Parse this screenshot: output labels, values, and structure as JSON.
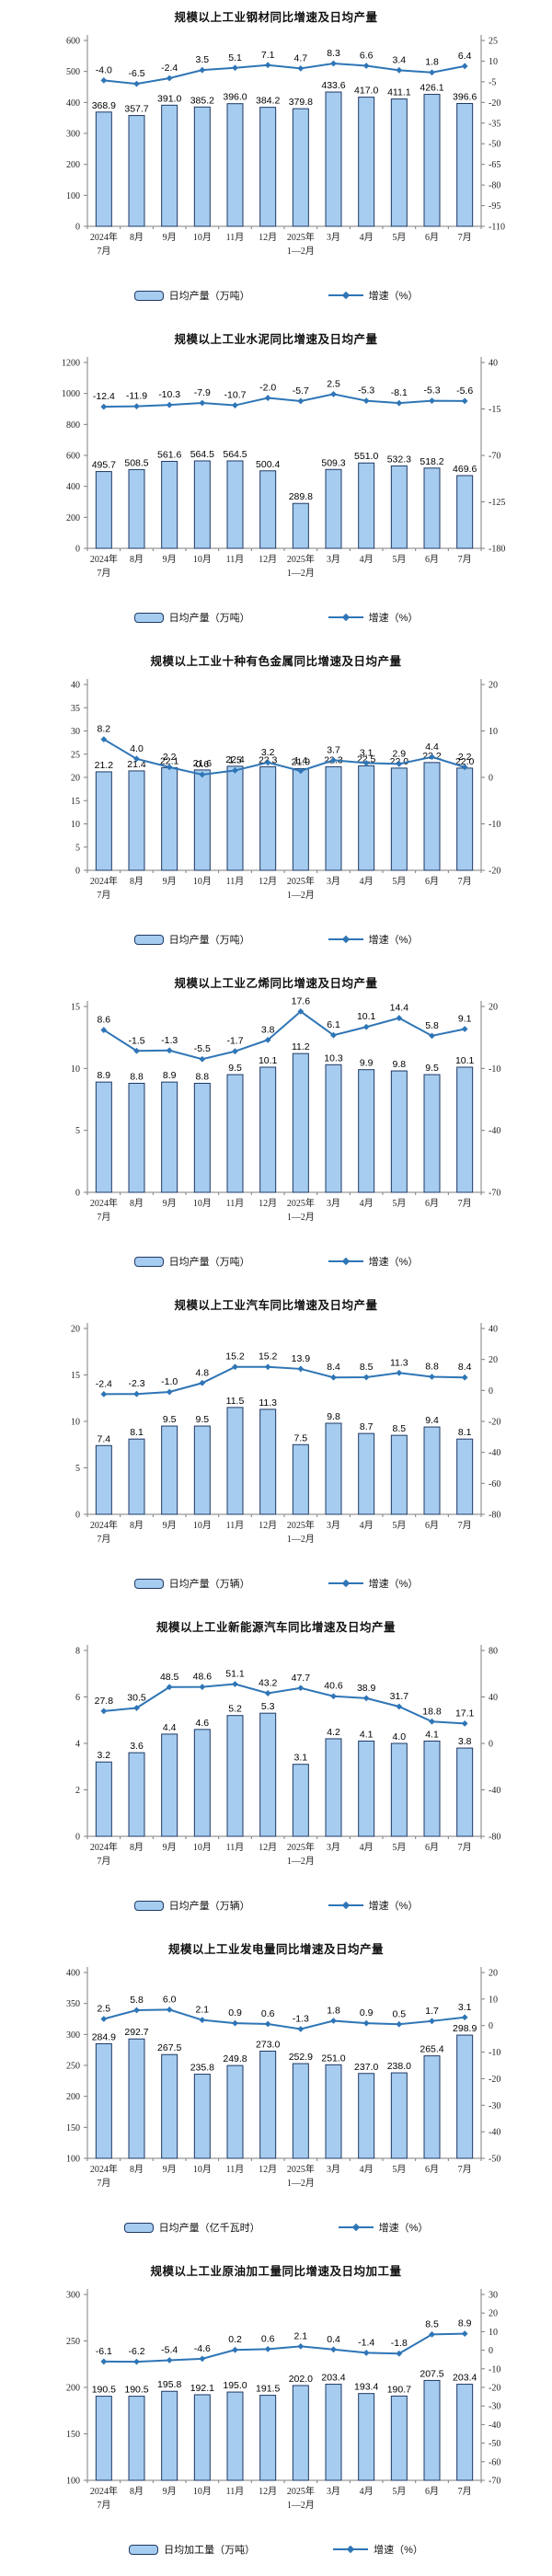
{
  "colors": {
    "background": "#ffffff",
    "bar_fill": "#A6CDF0",
    "bar_border": "#1F3864",
    "line": "#2E75B6",
    "data_label": "#000000",
    "axis_text": "#222222",
    "axis_line": "#7f7f7f"
  },
  "category_display": [
    [
      "2024年",
      "7月"
    ],
    [
      "8月"
    ],
    [
      "9月"
    ],
    [
      "10月"
    ],
    [
      "11月"
    ],
    [
      "12月"
    ],
    [
      "2025年",
      "1—2月"
    ],
    [
      "3月"
    ],
    [
      "4月"
    ],
    [
      "5月"
    ],
    [
      "6月"
    ],
    [
      "7月"
    ]
  ],
  "chart_data": [
    {
      "type": "bar+line",
      "title": "规模以上工业钢材同比增速及日均产量",
      "categories": [
        "2024年7月",
        "8月",
        "9月",
        "10月",
        "11月",
        "12月",
        "2025年1—2月",
        "3月",
        "4月",
        "5月",
        "6月",
        "7月"
      ],
      "series": [
        {
          "name": "日均产量（万吨）",
          "type": "bar",
          "axis": "left",
          "values": [
            368.9,
            357.7,
            391.0,
            385.2,
            396.0,
            384.2,
            379.8,
            433.6,
            417.0,
            411.1,
            426.1,
            396.6
          ]
        },
        {
          "name": "增速（%）",
          "type": "line",
          "axis": "right",
          "values": [
            -4.0,
            -6.5,
            -2.4,
            3.5,
            5.1,
            7.1,
            4.7,
            8.3,
            6.6,
            3.4,
            1.8,
            6.4
          ]
        }
      ],
      "left_axis": {
        "min": 0,
        "max": 600,
        "ticks": [
          600,
          500,
          400,
          300,
          200,
          100,
          0
        ]
      },
      "right_axis": {
        "min": -110,
        "max": 25,
        "ticks": [
          25,
          10,
          -5,
          -20,
          -35,
          -50,
          -65,
          -80,
          -95,
          -110
        ]
      },
      "grid": false,
      "legend_position": "bottom"
    },
    {
      "type": "bar+line",
      "title": "规模以上工业水泥同比增速及日均产量",
      "categories": [
        "2024年7月",
        "8月",
        "9月",
        "10月",
        "11月",
        "12月",
        "2025年1—2月",
        "3月",
        "4月",
        "5月",
        "6月",
        "7月"
      ],
      "series": [
        {
          "name": "日均产量（万吨）",
          "type": "bar",
          "axis": "left",
          "values": [
            495.7,
            508.5,
            561.6,
            564.5,
            564.5,
            500.4,
            289.8,
            509.3,
            551.0,
            532.3,
            518.2,
            469.6
          ]
        },
        {
          "name": "增速（%）",
          "type": "line",
          "axis": "right",
          "values": [
            -12.4,
            -11.9,
            -10.3,
            -7.9,
            -10.7,
            -2.0,
            -5.7,
            2.5,
            -5.3,
            -8.1,
            -5.3,
            -5.6
          ]
        }
      ],
      "left_axis": {
        "min": 0,
        "max": 1200,
        "ticks": [
          1200,
          1000,
          800,
          600,
          400,
          200,
          0
        ]
      },
      "right_axis": {
        "min": -180,
        "max": 40,
        "ticks": [
          40,
          -15,
          -70,
          -125,
          -180
        ]
      },
      "grid": false,
      "legend_position": "bottom"
    },
    {
      "type": "bar+line",
      "title": "规模以上工业十种有色金属同比增速及日均产量",
      "categories": [
        "2024年7月",
        "8月",
        "9月",
        "10月",
        "11月",
        "12月",
        "2025年1—2月",
        "3月",
        "4月",
        "5月",
        "6月",
        "7月"
      ],
      "series": [
        {
          "name": "日均产量（万吨）",
          "type": "bar",
          "axis": "left",
          "values": [
            21.2,
            21.4,
            22.1,
            21.6,
            22.4,
            22.3,
            21.9,
            22.3,
            22.5,
            22.0,
            23.2,
            22.0
          ]
        },
        {
          "name": "增速（%）",
          "type": "line",
          "axis": "right",
          "values": [
            8.2,
            4.0,
            2.2,
            0.6,
            1.5,
            3.2,
            1.4,
            3.7,
            3.1,
            2.9,
            4.4,
            2.2
          ]
        }
      ],
      "left_axis": {
        "min": 0,
        "max": 40,
        "ticks": [
          40,
          35,
          30,
          25,
          20,
          15,
          10,
          5,
          0
        ]
      },
      "right_axis": {
        "min": -20,
        "max": 20,
        "ticks": [
          20,
          10,
          0,
          -10,
          -20
        ]
      },
      "grid": false,
      "legend_position": "bottom"
    },
    {
      "type": "bar+line",
      "title": "规模以上工业乙烯同比增速及日均产量",
      "categories": [
        "2024年7月",
        "8月",
        "9月",
        "10月",
        "11月",
        "12月",
        "2025年1—2月",
        "3月",
        "4月",
        "5月",
        "6月",
        "7月"
      ],
      "series": [
        {
          "name": "日均产量（万吨）",
          "type": "bar",
          "axis": "left",
          "values": [
            8.9,
            8.8,
            8.9,
            8.8,
            9.5,
            10.1,
            11.2,
            10.3,
            9.9,
            9.8,
            9.5,
            10.1
          ]
        },
        {
          "name": "增速（%）",
          "type": "line",
          "axis": "right",
          "values": [
            8.6,
            -1.5,
            -1.3,
            -5.5,
            -1.7,
            3.8,
            17.6,
            6.1,
            10.1,
            14.4,
            5.8,
            9.1
          ]
        }
      ],
      "left_axis": {
        "min": 0,
        "max": 15,
        "ticks": [
          15,
          10,
          5,
          0
        ]
      },
      "right_axis": {
        "min": -70,
        "max": 20,
        "ticks": [
          20,
          -10,
          -40,
          -70
        ]
      },
      "grid": false,
      "legend_position": "bottom"
    },
    {
      "type": "bar+line",
      "title": "规模以上工业汽车同比增速及日均产量",
      "categories": [
        "2024年7月",
        "8月",
        "9月",
        "10月",
        "11月",
        "12月",
        "2025年1—2月",
        "3月",
        "4月",
        "5月",
        "6月",
        "7月"
      ],
      "series": [
        {
          "name": "日均产量（万辆）",
          "type": "bar",
          "axis": "left",
          "values": [
            7.4,
            8.1,
            9.5,
            9.5,
            11.5,
            11.3,
            7.5,
            9.8,
            8.7,
            8.5,
            9.4,
            8.1
          ]
        },
        {
          "name": "增速（%）",
          "type": "line",
          "axis": "right",
          "values": [
            -2.4,
            -2.3,
            -1.0,
            4.8,
            15.2,
            15.2,
            13.9,
            8.4,
            8.5,
            11.3,
            8.8,
            8.4
          ]
        }
      ],
      "left_axis": {
        "min": 0,
        "max": 20,
        "ticks": [
          20,
          15,
          10,
          5,
          0
        ]
      },
      "right_axis": {
        "min": -80,
        "max": 40,
        "ticks": [
          40,
          20,
          0,
          -20,
          -40,
          -60,
          -80
        ]
      },
      "grid": false,
      "legend_position": "bottom"
    },
    {
      "type": "bar+line",
      "title": "规模以上工业新能源汽车同比增速及日均产量",
      "categories": [
        "2024年7月",
        "8月",
        "9月",
        "10月",
        "11月",
        "12月",
        "2025年1—2月",
        "3月",
        "4月",
        "5月",
        "6月",
        "7月"
      ],
      "series": [
        {
          "name": "日均产量（万辆）",
          "type": "bar",
          "axis": "left",
          "values": [
            3.2,
            3.6,
            4.4,
            4.6,
            5.2,
            5.3,
            3.1,
            4.2,
            4.1,
            4.0,
            4.1,
            3.8
          ]
        },
        {
          "name": "增速（%）",
          "type": "line",
          "axis": "right",
          "values": [
            27.8,
            30.5,
            48.5,
            48.6,
            51.1,
            43.2,
            47.7,
            40.6,
            38.9,
            31.7,
            18.8,
            17.1
          ]
        }
      ],
      "left_axis": {
        "min": 0,
        "max": 8,
        "ticks": [
          8,
          6,
          4,
          2,
          0
        ]
      },
      "right_axis": {
        "min": -80,
        "max": 80,
        "ticks": [
          80,
          40,
          0,
          -40,
          -80
        ]
      },
      "grid": false,
      "legend_position": "bottom"
    },
    {
      "type": "bar+line",
      "title": "规模以上工业发电量同比增速及日均产量",
      "categories": [
        "2024年7月",
        "8月",
        "9月",
        "10月",
        "11月",
        "12月",
        "2025年1—2月",
        "3月",
        "4月",
        "5月",
        "6月",
        "7月"
      ],
      "series": [
        {
          "name": "日均产量（亿千瓦时）",
          "type": "bar",
          "axis": "left",
          "values": [
            284.9,
            292.7,
            267.5,
            235.8,
            249.8,
            273.0,
            252.9,
            251.0,
            237.0,
            238.0,
            265.4,
            298.9
          ]
        },
        {
          "name": "增速（%）",
          "type": "line",
          "axis": "right",
          "values": [
            2.5,
            5.8,
            6.0,
            2.1,
            0.9,
            0.6,
            -1.3,
            1.8,
            0.9,
            0.5,
            1.7,
            3.1
          ]
        }
      ],
      "left_axis": {
        "min": 100,
        "max": 400,
        "ticks": [
          400,
          350,
          300,
          250,
          200,
          150,
          100
        ]
      },
      "right_axis": {
        "min": -50,
        "max": 20,
        "ticks": [
          20,
          10,
          0,
          -10,
          -20,
          -30,
          -40,
          -50
        ]
      },
      "grid": false,
      "legend_position": "bottom"
    },
    {
      "type": "bar+line",
      "title": "规模以上工业原油加工量同比增速及日均加工量",
      "categories": [
        "2024年7月",
        "8月",
        "9月",
        "10月",
        "11月",
        "12月",
        "2025年1—2月",
        "3月",
        "4月",
        "5月",
        "6月",
        "7月"
      ],
      "series": [
        {
          "name": "日均加工量（万吨）",
          "type": "bar",
          "axis": "left",
          "values": [
            190.5,
            190.5,
            195.8,
            192.1,
            195.0,
            191.5,
            202.0,
            203.4,
            193.4,
            190.7,
            207.5,
            203.4
          ]
        },
        {
          "name": "增速（%）",
          "type": "line",
          "axis": "right",
          "values": [
            -6.1,
            -6.2,
            -5.4,
            -4.6,
            0.2,
            0.6,
            2.1,
            0.4,
            -1.4,
            -1.8,
            8.5,
            8.9
          ]
        }
      ],
      "left_axis": {
        "min": 100,
        "max": 300,
        "ticks": [
          300,
          250,
          200,
          150,
          100
        ]
      },
      "right_axis": {
        "min": -70,
        "max": 30,
        "ticks": [
          30,
          20,
          10,
          0,
          -10,
          -20,
          -30,
          -40,
          -50,
          -60,
          -70
        ]
      },
      "grid": false,
      "legend_position": "bottom"
    }
  ]
}
